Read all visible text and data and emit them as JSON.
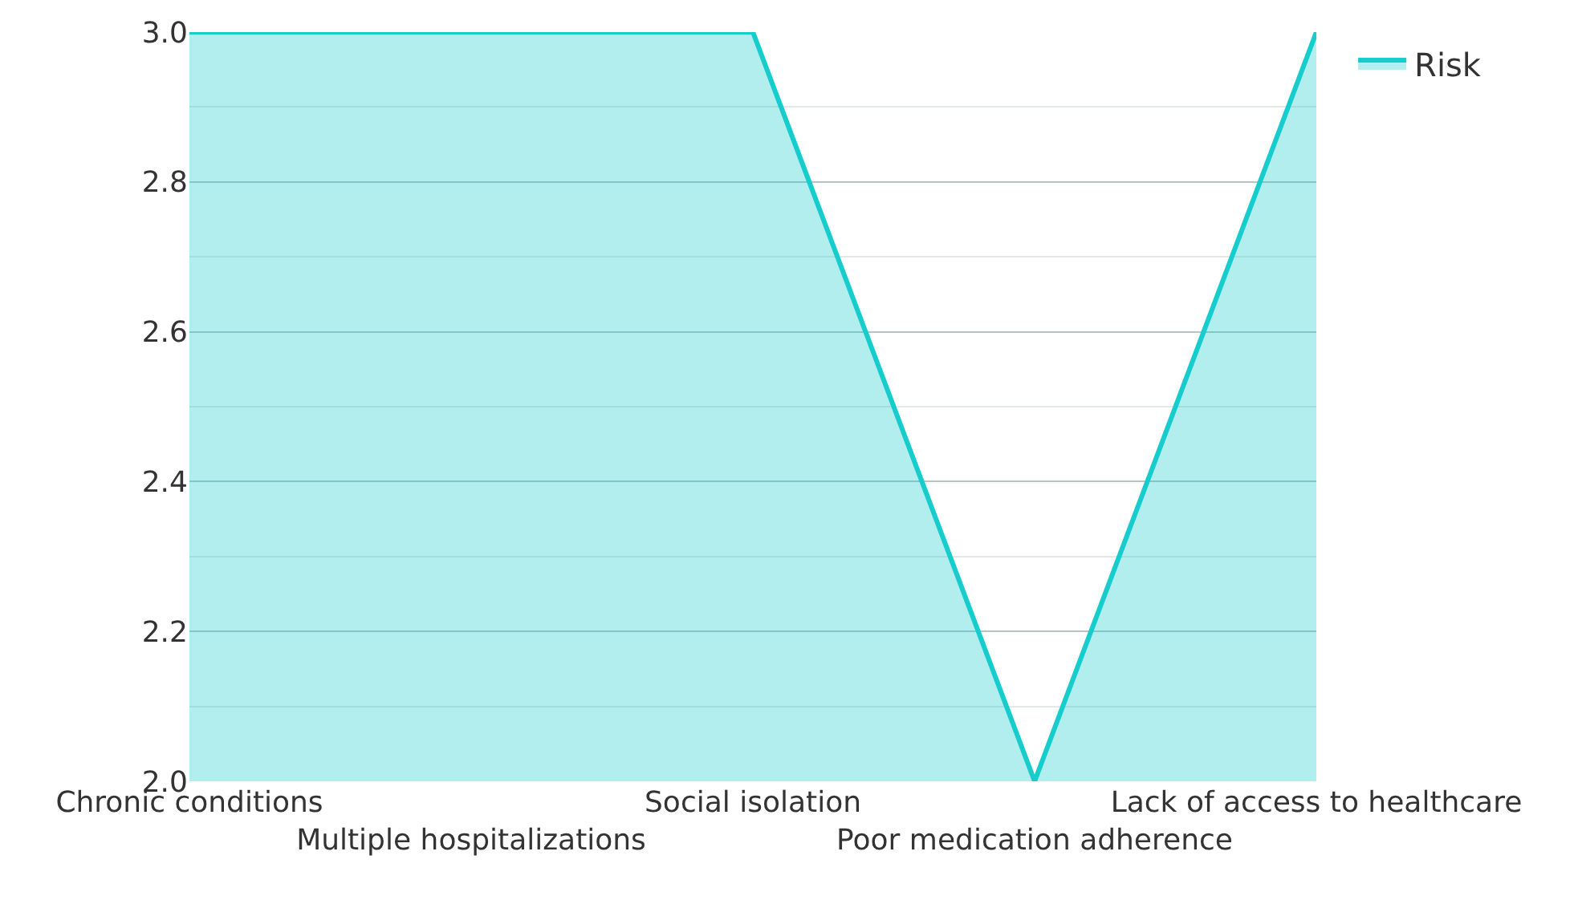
{
  "chart_data": {
    "type": "area",
    "categories": [
      "Chronic conditions",
      "Multiple hospitalizations",
      "Social isolation",
      "Poor medication adherence",
      "Lack of access to healthcare"
    ],
    "series": [
      {
        "name": "Risk",
        "color": "#17cccc",
        "values": [
          3,
          3,
          3,
          2,
          3
        ]
      }
    ],
    "ylim": [
      2,
      3
    ],
    "yticks": [
      {
        "value": 2,
        "label": "2.0"
      },
      {
        "value": 2.2,
        "label": "2.2"
      },
      {
        "value": 2.4,
        "label": "2.4"
      },
      {
        "value": 2.6,
        "label": "2.6"
      },
      {
        "value": 2.8,
        "label": "2.8"
      },
      {
        "value": 3,
        "label": "3.0"
      }
    ],
    "grid": "y",
    "legend": "top right"
  }
}
